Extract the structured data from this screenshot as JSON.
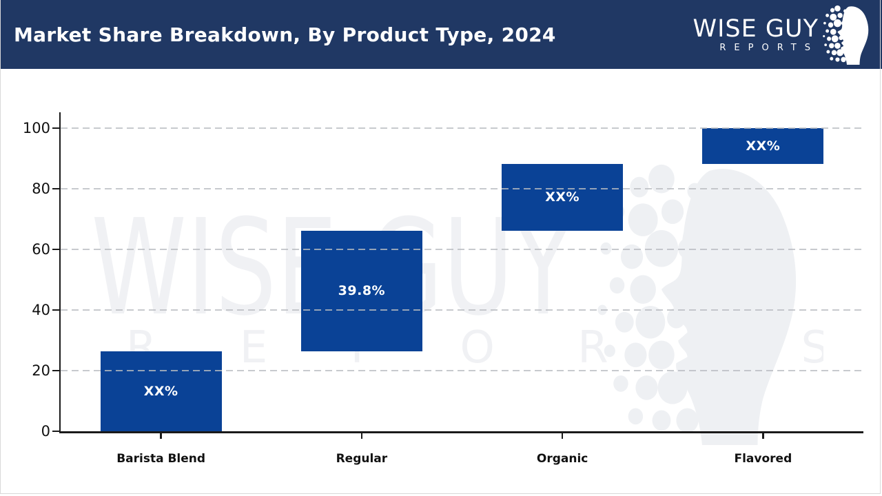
{
  "header": {
    "title": "Market Share Breakdown, By Product Type, 2024",
    "logo": {
      "line1": "WISE GUY",
      "line2": "REPORTS"
    }
  },
  "watermark": {
    "line1": "WISE GUY",
    "line2": "R E P O R T S"
  },
  "chart_data": {
    "type": "bar",
    "subtype": "waterfall",
    "title": "Market Share Breakdown, By Product Type, 2024",
    "categories": [
      "Barista Blend",
      "Regular",
      "Organic",
      "Flavored"
    ],
    "bars": [
      {
        "category": "Barista Blend",
        "start": 0,
        "end": 26.4,
        "label": "XX%"
      },
      {
        "category": "Regular",
        "start": 26.4,
        "end": 66.2,
        "label": "39.8%"
      },
      {
        "category": "Organic",
        "start": 66.2,
        "end": 88.2,
        "label": "XX%"
      },
      {
        "category": "Flavored",
        "start": 88.2,
        "end": 100,
        "label": "XX%"
      }
    ],
    "xlabel": "",
    "ylabel": "",
    "ylim": [
      0,
      100
    ],
    "yticks": [
      0,
      20,
      40,
      60,
      80,
      100
    ],
    "grid": "horizontal-dashed",
    "legend": null,
    "bar_color": "#0a4296"
  },
  "colors": {
    "header_bg": "#203864",
    "bar": "#0a4296",
    "axis": "#1a1a1a",
    "grid": "#d9d9d9",
    "watermark": "#f0f1f4",
    "title_text": "#ffffff"
  }
}
